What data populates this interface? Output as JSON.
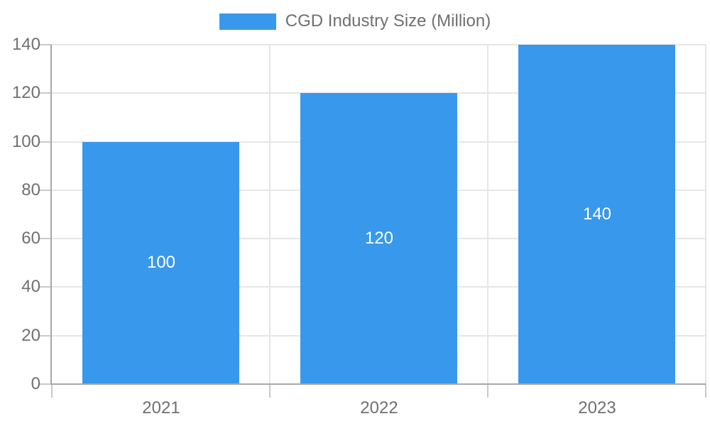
{
  "chart_data": {
    "type": "bar",
    "title": "",
    "categories": [
      "2021",
      "2022",
      "2023"
    ],
    "series": [
      {
        "name": "CGD Industry Size (Million)",
        "values": [
          100,
          120,
          140
        ],
        "color": "#3898EC"
      }
    ],
    "bar_value_labels": [
      "100",
      "120",
      "140"
    ],
    "ylim": [
      0,
      140
    ],
    "ytick_step": 20,
    "ytick_labels": [
      "0",
      "20",
      "40",
      "60",
      "80",
      "100",
      "120",
      "140"
    ],
    "xlabel": "",
    "ylabel": "",
    "grid": "on",
    "legend_position": "top-center",
    "colors": {
      "bar": "#3898EC",
      "gridline": "#e6e6e6",
      "tick_mark": "#c9c9c9",
      "axis_border": "#a8a8a8",
      "axis_text": "#707070",
      "bar_label_text": "#ffffff",
      "background": "#ffffff"
    }
  }
}
